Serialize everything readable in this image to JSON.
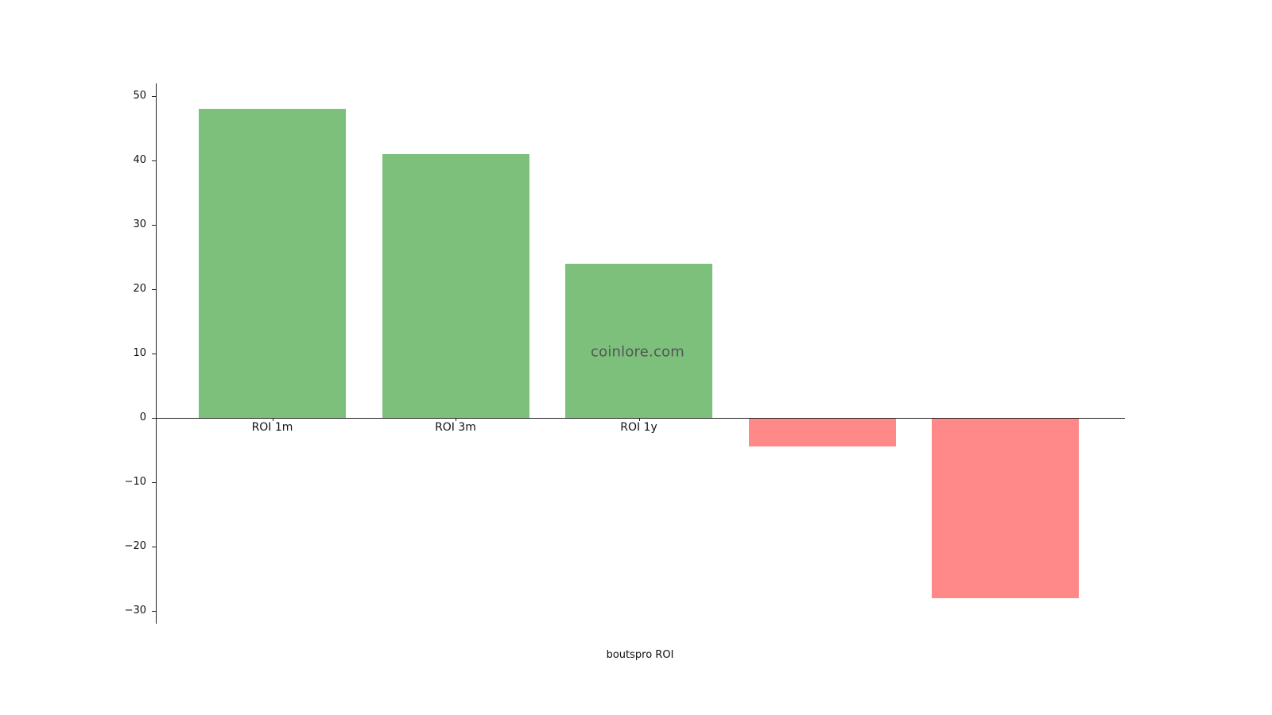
{
  "chart_data": {
    "type": "bar",
    "title": "",
    "xlabel": "boutspro ROI",
    "ylabel": "",
    "categories": [
      "ROI 1m",
      "ROI 3m",
      "ROI 1y",
      "",
      ""
    ],
    "values": [
      48,
      41,
      24,
      -4.5,
      -28
    ],
    "ylim": [
      -32,
      52
    ],
    "yticks": [
      50,
      40,
      30,
      20,
      10,
      0,
      -10,
      -20,
      -30
    ],
    "ytick_labels": [
      "50",
      "40",
      "30",
      "20",
      "10",
      "0",
      "−10",
      "−20",
      "−30"
    ],
    "positive_color": "#7cc07c",
    "negative_color": "#ff8888",
    "axis_color": "#222222",
    "tick_label_color": "#111111",
    "watermark": "coinlore.com",
    "grid": false,
    "legend": "none"
  }
}
